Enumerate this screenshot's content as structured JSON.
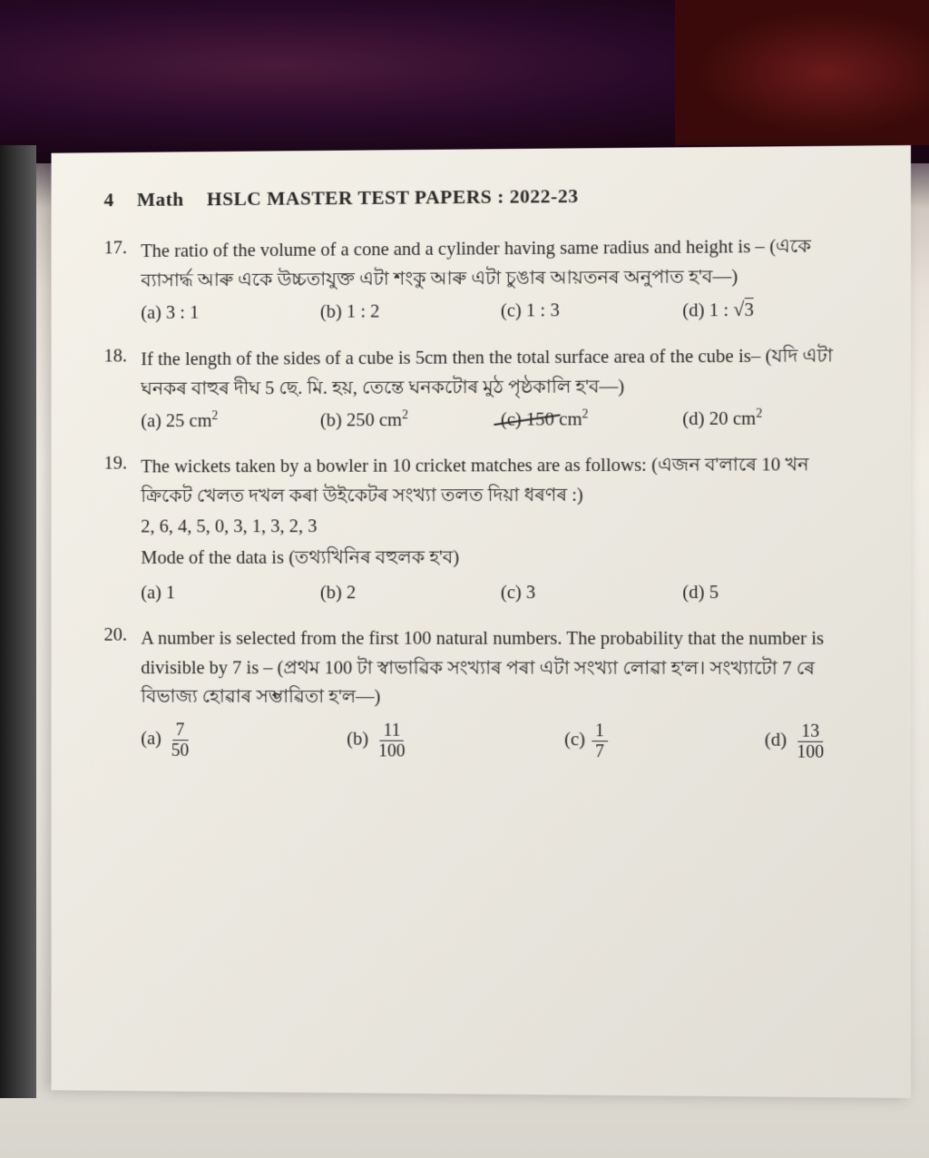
{
  "header": {
    "page_number": "4",
    "subject": "Math",
    "title": "HSLC MASTER TEST PAPERS : 2022-23"
  },
  "questions": [
    {
      "num": "17.",
      "text_en": "The ratio of the volume of a cone and a cylinder having same radius and height is –",
      "text_as": "(একে ব্যাসাৰ্দ্ধ আৰু একে উচ্চতাযুক্ত এটা শংকু আৰু এটা চুঙাৰ আয়তনৰ অনুপাত হ'ব—)",
      "options": [
        {
          "label": "(a)",
          "value": "3 : 1"
        },
        {
          "label": "(b)",
          "value": "1 : 2"
        },
        {
          "label": "(c)",
          "value": "1 : 3"
        },
        {
          "label": "(d)",
          "value": "1 : √3"
        }
      ]
    },
    {
      "num": "18.",
      "text_en": "If the length of the sides of a cube is 5cm then the total surface area of the cube is–",
      "text_as": "(যদি এটা ঘনকৰ বাহুৰ দীঘ 5 ছে. মি. হয়, তেন্তে ঘনকটোৰ মুঠ পৃষ্ঠকালি হ'ব—)",
      "options": [
        {
          "label": "(a)",
          "value": "25 cm²"
        },
        {
          "label": "(b)",
          "value": "250 cm²"
        },
        {
          "label": "(c)",
          "value": "150 cm²"
        },
        {
          "label": "(d)",
          "value": "20 cm²"
        }
      ]
    },
    {
      "num": "19.",
      "text_en": "The wickets taken by a bowler in 10 cricket matches are as follows:",
      "text_as": "(এজন ব'লাৰে 10 খন ক্ৰিকেট খেলত দখল কৰা উইকেটৰ সংখ্যা তলত দিয়া ধৰণৰ :)",
      "data": "2, 6, 4, 5, 0, 3, 1, 3, 2, 3",
      "mode_line_en": "Mode of the data is",
      "mode_line_as": "(তথ্যখিনিৰ বহুলক হ'ব)",
      "options": [
        {
          "label": "(a)",
          "value": "1"
        },
        {
          "label": "(b)",
          "value": "2"
        },
        {
          "label": "(c)",
          "value": "3"
        },
        {
          "label": "(d)",
          "value": "5"
        }
      ]
    },
    {
      "num": "20.",
      "text_en": "A number is selected from the first 100 natural numbers. The probability that the number is divisible by 7 is –",
      "text_as": "(প্ৰথম 100 টা স্বাভাৱিক সংখ্যাৰ পৰা এটা সংখ্যা লোৱা হ'ল। সংখ্যাটো 7 ৰে বিভাজ্য হোৱাৰ সম্ভাৱিতা হ'ল—)",
      "options": [
        {
          "label": "(a)",
          "num": "7",
          "den": "50"
        },
        {
          "label": "(b)",
          "num": "11",
          "den": "100"
        },
        {
          "label": "(c)",
          "num": "1",
          "den": "7"
        },
        {
          "label": "(d)",
          "num": "13",
          "den": "100"
        }
      ]
    }
  ]
}
